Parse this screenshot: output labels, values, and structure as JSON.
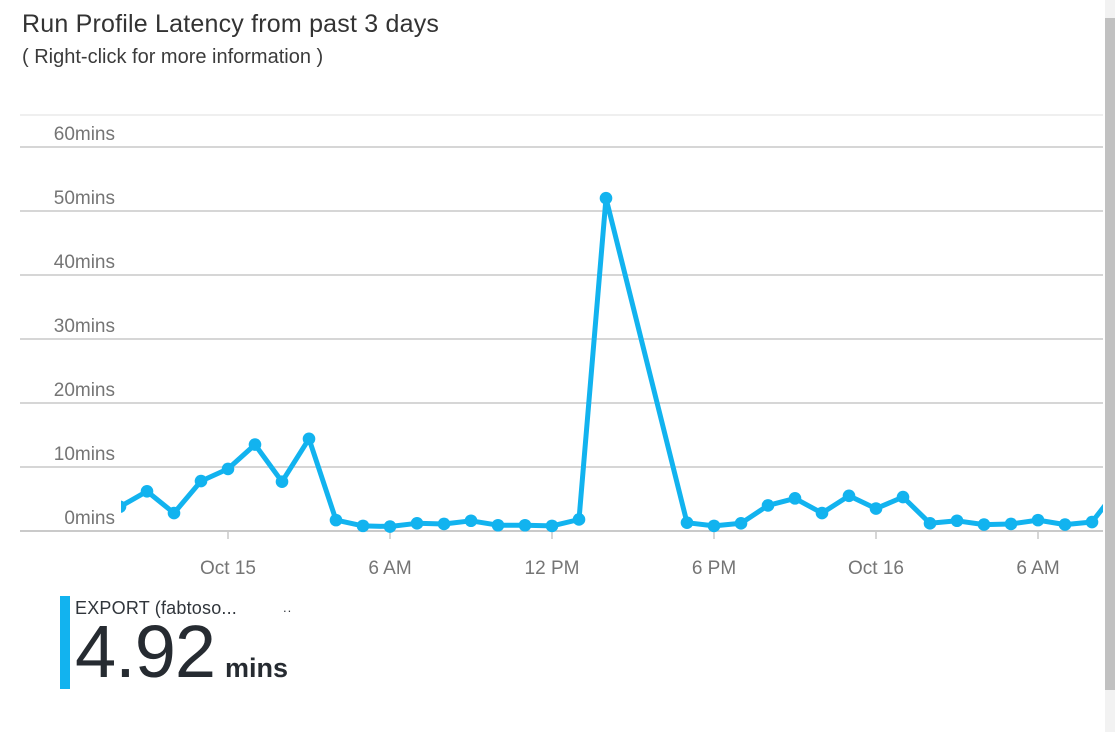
{
  "header": {
    "title": "Run Profile Latency from past 3 days",
    "subtitle": "( Right-click for more information )"
  },
  "callout": {
    "series_label": "EXPORT (fabtoso...",
    "overflow_dots": "..",
    "value": "4.92",
    "unit": "mins"
  },
  "colors": {
    "accent": "#12b3ef",
    "grid": "#c9c9c9",
    "grid_top": "#e5e5e5",
    "axis_zero": "#b9b9b9",
    "axis_text": "#757575",
    "title_text": "#333333",
    "value_text": "#262b31",
    "scrollbar_track": "#f2f2f2",
    "scrollbar_thumb": "#c1c1c1"
  },
  "chart_data": {
    "type": "line",
    "title": "Run Profile Latency from past 3 days",
    "xlabel": "",
    "ylabel": "minutes",
    "grid": true,
    "legend_position": "bottom-left",
    "y_axis": {
      "tick_values": [
        0,
        10,
        20,
        30,
        40,
        50,
        60
      ],
      "tick_labels": [
        "0mins",
        "10mins",
        "20mins",
        "30mins",
        "40mins",
        "50mins",
        "60mins"
      ],
      "range": [
        0,
        65
      ]
    },
    "x_axis": {
      "tick_labels": [
        "Oct 15",
        "6 AM",
        "12 PM",
        "6 PM",
        "Oct 16",
        "6 AM"
      ],
      "tick_hours": [
        4,
        10,
        16,
        22,
        28,
        34
      ],
      "hours_span": [
        0,
        37
      ],
      "note": "hour 0 = 8 PM Oct 14, one point per hour"
    },
    "series": [
      {
        "name": "EXPORT (fabtoso...",
        "color": "#12b3ef",
        "unit": "mins",
        "current_value": 4.92,
        "points_hour_value": [
          [
            0,
            3.8
          ],
          [
            1,
            6.2
          ],
          [
            2,
            2.8
          ],
          [
            3,
            7.8
          ],
          [
            4,
            9.7
          ],
          [
            5,
            13.5
          ],
          [
            6,
            7.7
          ],
          [
            7,
            14.4
          ],
          [
            8,
            1.7
          ],
          [
            9,
            0.8
          ],
          [
            10,
            0.7
          ],
          [
            11,
            1.2
          ],
          [
            12,
            1.1
          ],
          [
            13,
            1.6
          ],
          [
            14,
            0.9
          ],
          [
            15,
            0.9
          ],
          [
            16,
            0.8
          ],
          [
            17,
            1.8
          ],
          [
            18,
            52.0
          ],
          [
            21,
            1.3
          ],
          [
            22,
            0.8
          ],
          [
            23,
            1.2
          ],
          [
            24,
            4.0
          ],
          [
            25,
            5.1
          ],
          [
            26,
            2.8
          ],
          [
            27,
            5.5
          ],
          [
            28,
            3.5
          ],
          [
            29,
            5.3
          ],
          [
            30,
            1.2
          ],
          [
            31,
            1.6
          ],
          [
            32,
            1.0
          ],
          [
            33,
            1.1
          ],
          [
            34,
            1.7
          ],
          [
            35,
            1.0
          ],
          [
            36,
            1.4
          ],
          [
            37,
            6.8
          ]
        ]
      }
    ]
  }
}
